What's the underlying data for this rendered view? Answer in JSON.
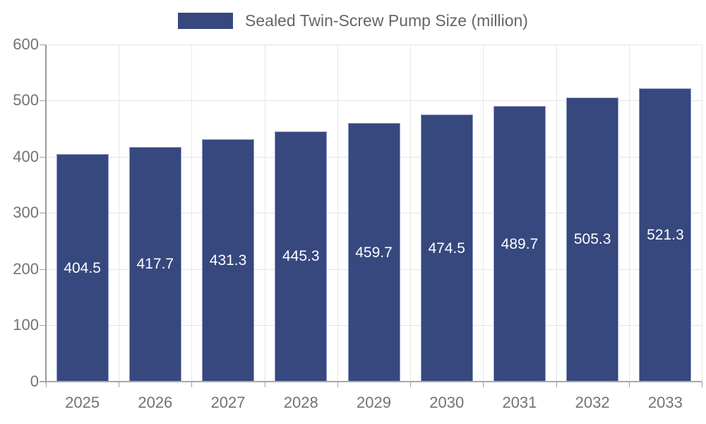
{
  "legend": {
    "label": "Sealed Twin-Screw Pump Size (million)"
  },
  "colors": {
    "bar_fill": "#36487E",
    "bar_border": "#8F9CC9",
    "grid_line": "#E4E4E4",
    "axis_line": "#9B9B9B",
    "tick_label": "#737373",
    "legend_text": "#666666",
    "value_label": "#FFFFFF",
    "background": "#FFFFFF"
  },
  "chart_data": {
    "type": "bar",
    "title": "Sealed Twin-Screw Pump Size (million)",
    "categories": [
      "2025",
      "2026",
      "2027",
      "2028",
      "2029",
      "2030",
      "2031",
      "2032",
      "2033"
    ],
    "series": [
      {
        "name": "Sealed Twin-Screw Pump Size (million)",
        "values": [
          404.5,
          417.7,
          431.3,
          445.3,
          459.7,
          474.5,
          489.7,
          505.3,
          521.3
        ]
      }
    ],
    "value_label_decimals": 1,
    "xlabel": "",
    "ylabel": "",
    "ylim": [
      0,
      600
    ],
    "yticks": [
      0,
      100,
      200,
      300,
      400,
      500,
      600
    ],
    "grid": "on",
    "legend_position": "top"
  }
}
